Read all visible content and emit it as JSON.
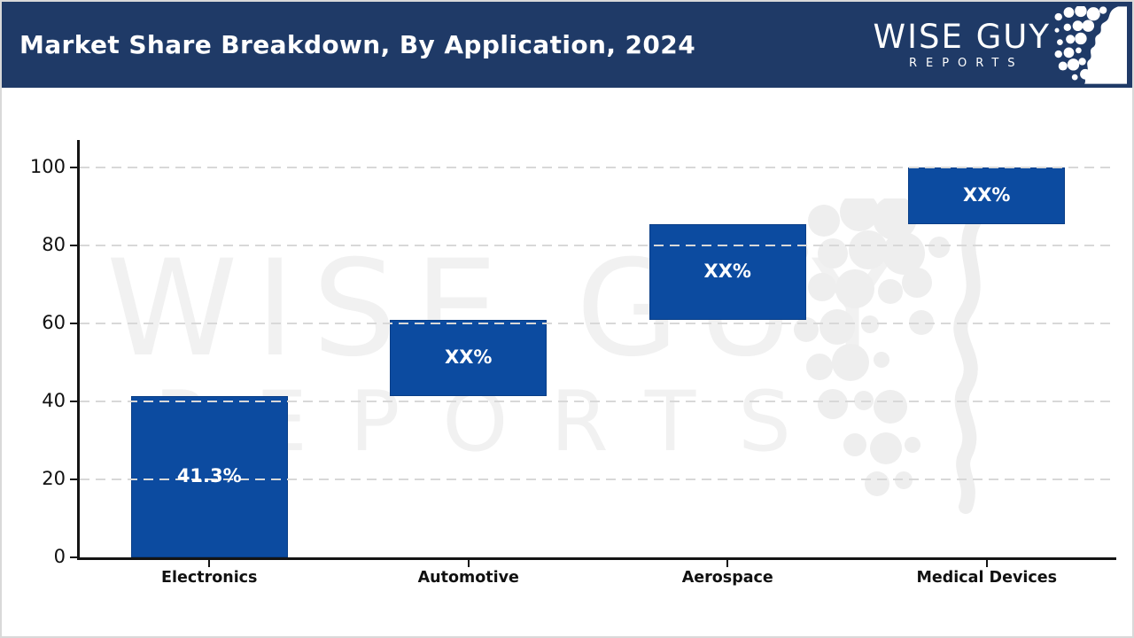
{
  "header": {
    "title": "Market Share Breakdown, By Application, 2024"
  },
  "brand": {
    "name": "WISE GUY",
    "subtitle": "REPORTS"
  },
  "watermark": {
    "line1": "WISE GUY",
    "line2": "REPORTS"
  },
  "colors": {
    "header_bg": "#1f3a67",
    "bar": "#0c4ba0",
    "grid": "#d8d8d8",
    "axis": "#141414",
    "bar_label": "#ffffff",
    "watermark": "#f1f1f1",
    "page_border": "#d9d9d9"
  },
  "chart_data": {
    "type": "bar",
    "subtype": "waterfall",
    "title": "Market Share Breakdown, By Application, 2024",
    "xlabel": "",
    "ylabel": "",
    "categories": [
      "Electronics",
      "Automotive",
      "Aerospace",
      "Medical Devices"
    ],
    "segments": [
      {
        "category": "Electronics",
        "start": 0,
        "end": 41.3,
        "label": "41.3%"
      },
      {
        "category": "Automotive",
        "start": 41.3,
        "end": 61.0,
        "label": "XX%"
      },
      {
        "category": "Aerospace",
        "start": 61.0,
        "end": 85.5,
        "label": "XX%"
      },
      {
        "category": "Medical Devices",
        "start": 85.5,
        "end": 100,
        "label": "XX%"
      }
    ],
    "yticks": [
      0,
      20,
      40,
      60,
      80,
      100
    ],
    "ylim": [
      0,
      107
    ],
    "grid": "horizontal-dashed",
    "legend": "none",
    "bar_color": "#0c4ba0"
  }
}
